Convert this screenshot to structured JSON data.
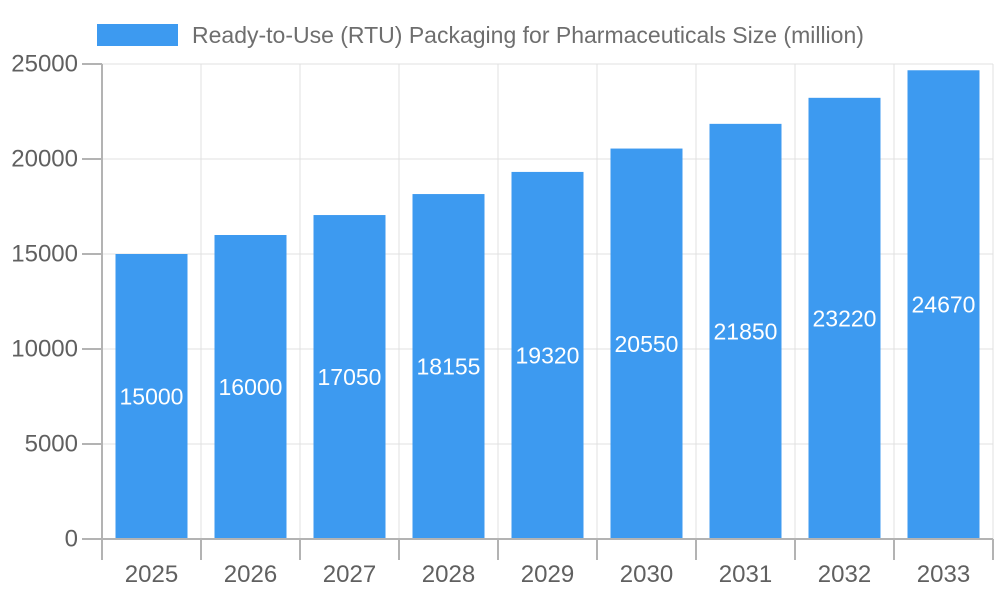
{
  "chart_data": {
    "type": "bar",
    "title": "Ready-to-Use (RTU) Packaging for Pharmaceuticals Size (million)",
    "categories": [
      "2025",
      "2026",
      "2027",
      "2028",
      "2029",
      "2030",
      "2031",
      "2032",
      "2033"
    ],
    "series": [
      {
        "name": "Ready-to-Use (RTU) Packaging for Pharmaceuticals Size (million)",
        "values": [
          15000,
          16000,
          17050,
          18155,
          19320,
          20550,
          21850,
          23220,
          24670
        ]
      }
    ],
    "bar_labels_shown": true,
    "xlabel": "",
    "ylabel": "",
    "ylim": [
      0,
      25000
    ],
    "yticks": [
      0,
      5000,
      10000,
      15000,
      20000,
      25000
    ],
    "grid": true,
    "legend_position": "top-left",
    "colors": {
      "bar": "#3d9af0",
      "bar_label_text": "#ffffff",
      "grid_line": "#e0e0e0",
      "axis_line": "#b3b3b3",
      "tick_text": "#606060",
      "legend_text": "#6e6e6e",
      "background": "#ffffff"
    }
  }
}
